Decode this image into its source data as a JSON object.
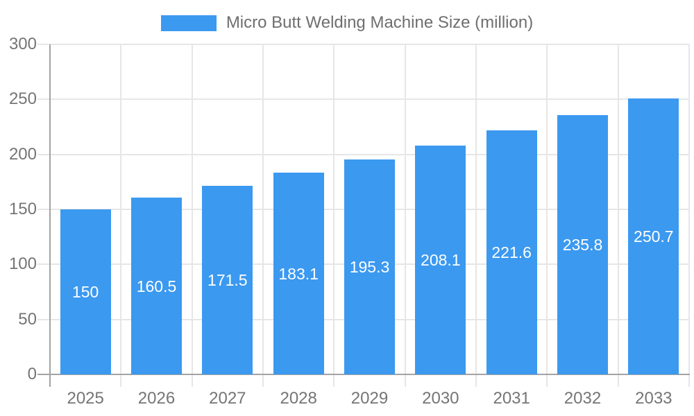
{
  "chart_data": {
    "type": "bar",
    "legend": "Micro Butt Welding Machine Size (million)",
    "categories": [
      "2025",
      "2026",
      "2027",
      "2028",
      "2029",
      "2030",
      "2031",
      "2032",
      "2033"
    ],
    "values": [
      150,
      160.5,
      171.5,
      183.1,
      195.3,
      208.1,
      221.6,
      235.8,
      250.7
    ],
    "value_labels": [
      "150",
      "160.5",
      "171.5",
      "183.1",
      "195.3",
      "208.1",
      "221.6",
      "235.8",
      "250.7"
    ],
    "xlabel": "",
    "ylabel": "",
    "ylim": [
      0,
      300
    ],
    "yticks": [
      0,
      50,
      100,
      150,
      200,
      250,
      300
    ],
    "grid": "both",
    "legend_position": "top-center",
    "colors": {
      "bar": "#3b99f0",
      "value_label": "#ffffff",
      "tick_label": "#757575",
      "legend_label": "#6e6e6e",
      "axis_line": "#a3a3a3",
      "gridline": "#e6e6e6",
      "background": "#ffffff"
    }
  }
}
